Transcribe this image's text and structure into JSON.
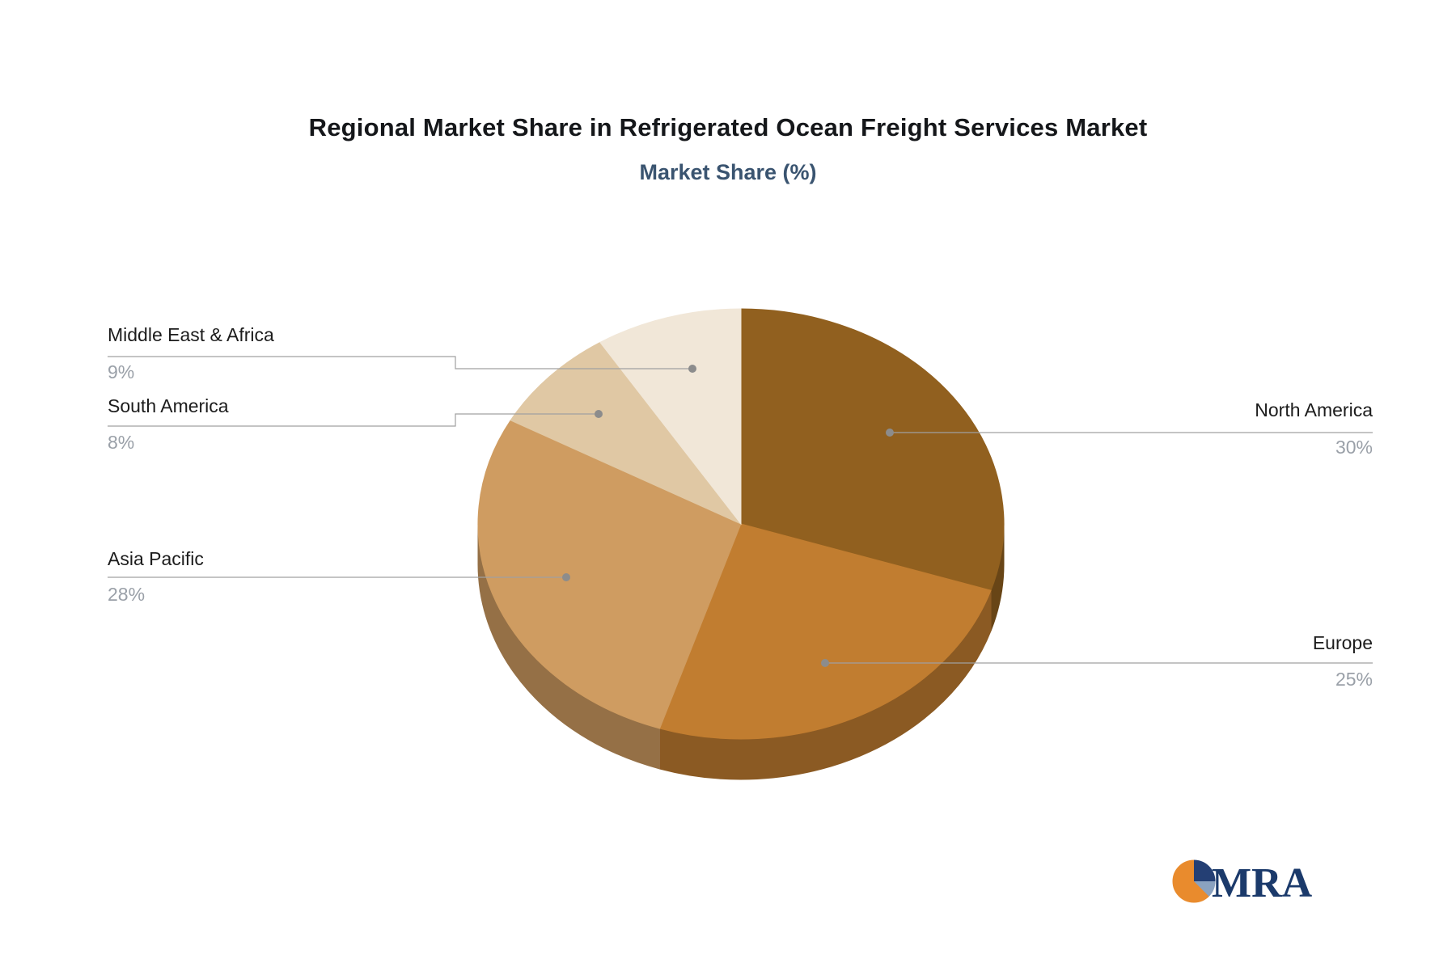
{
  "header": {
    "title": "Regional Market Share in Refrigerated Ocean Freight Services Market",
    "subtitle": "Market Share (%)"
  },
  "chart_data": {
    "type": "pie",
    "title": "Regional Market Share in Refrigerated Ocean Freight Services Market",
    "subtitle": "Market Share (%)",
    "unit": "%",
    "style": "3d-pie",
    "start_angle_deg": 0,
    "direction": "clockwise",
    "legend_position": "callout-labels",
    "slices": [
      {
        "label": "North America",
        "value": 30,
        "display": "30%",
        "color": "#91601f"
      },
      {
        "label": "Europe",
        "value": 25,
        "display": "25%",
        "color": "#c17d30"
      },
      {
        "label": "Asia Pacific",
        "value": 28,
        "display": "28%",
        "color": "#cf9c61"
      },
      {
        "label": "South America",
        "value": 8,
        "display": "8%",
        "color": "#e0c8a4"
      },
      {
        "label": "Middle East & Africa",
        "value": 9,
        "display": "9%",
        "color": "#f1e7d8"
      }
    ]
  },
  "logo": {
    "text": "MRA",
    "accent_orange": "#e98b2d",
    "accent_navy": "#243f74",
    "accent_steel": "#8aa2c0"
  }
}
